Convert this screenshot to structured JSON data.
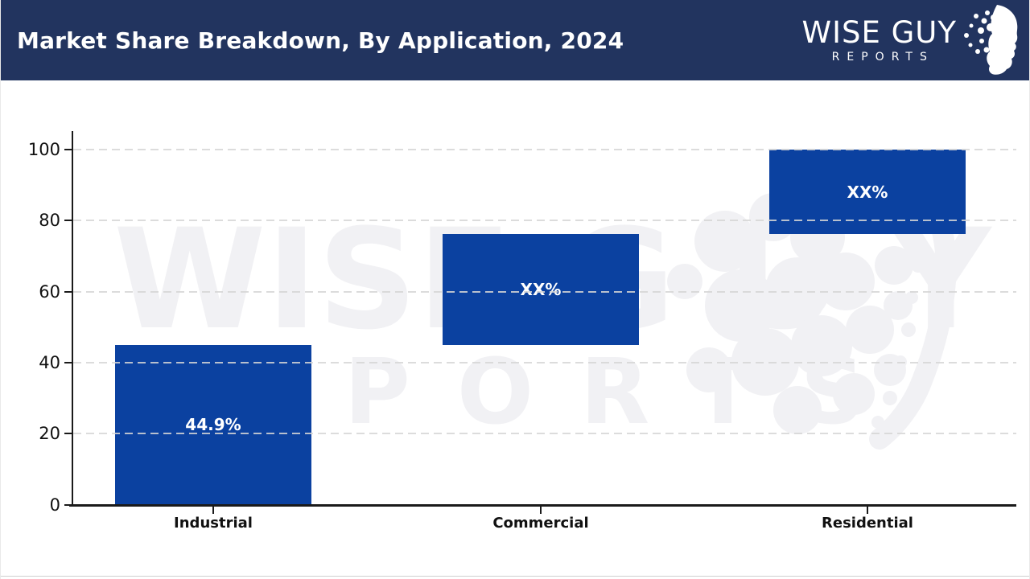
{
  "header": {
    "title": "Market Share Breakdown, By Application, 2024",
    "bg_color": "#22345f",
    "logo": {
      "brand_line1": "WISE GUY",
      "brand_line2": "REPORTS"
    }
  },
  "watermark": {
    "word1": "WISE",
    "word2": "GUY",
    "word3": "REPORTS"
  },
  "chart_data": {
    "type": "bar",
    "subtype": "floating-segment-waterfall",
    "title": "Market Share Breakdown, By Application, 2024",
    "categories": [
      "Industrial",
      "Commercial",
      "Residential"
    ],
    "segments": [
      {
        "category": "Industrial",
        "start": 0,
        "end": 44.9,
        "label": "44.9%"
      },
      {
        "category": "Commercial",
        "start": 44.9,
        "end": 76.2,
        "label": "XX%"
      },
      {
        "category": "Residential",
        "start": 76.2,
        "end": 100,
        "label": "XX%"
      }
    ],
    "y_ticks": [
      0,
      20,
      40,
      60,
      80,
      100
    ],
    "ylim": [
      0,
      105
    ],
    "xlabel": "",
    "ylabel": "",
    "grid": "horizontal-dashed",
    "gridline_color": "#d6d6d6",
    "bar_color": "#0b41a0",
    "bar_label_color": "#ffffff",
    "axis_color": "#1a1a1a",
    "legend": "none"
  }
}
